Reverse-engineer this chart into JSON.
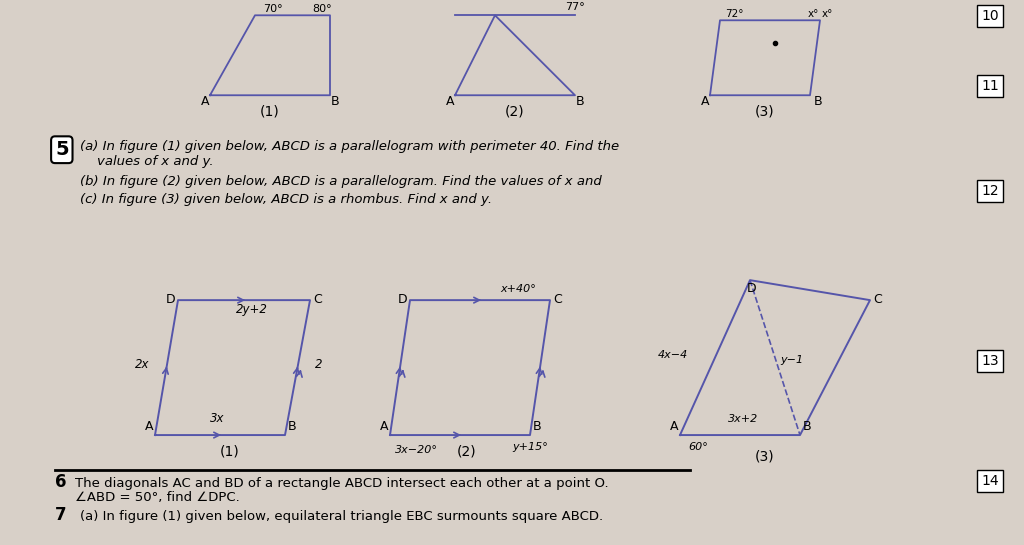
{
  "bg_color": "#d8d0c8",
  "page_bg": "#e8e0d8",
  "title_5": "5",
  "text_a": "(a) In figure (1) given below, ABCD is a parallelogram with perimeter 40. Find the\n      values of x and y.",
  "text_b": "(b) In figure (2) given below, ABCD is a parallelogram. Find the values of x and",
  "text_c": "(c) In figure (3) given below, ABCD is a rhombus. Find x and y.",
  "text_6": "6  The diagonals AC and BD of a rectangle ABCD intersect each other at a point O.\n   ∠ABD = 50°, find ∠DPC.",
  "text_7": "7    (a) In figure (1) given below, equilateral triangle EBC surmounts square ABCD.",
  "top_fig1_label": "(1)",
  "top_fig2_label": "(2)",
  "top_fig3_label": "(3)",
  "bot_fig1_label": "(1)",
  "bot_fig2_label": "(2)",
  "bot_fig3_label": "(3)",
  "right_labels": [
    "10",
    "11",
    "12",
    "13",
    "14"
  ]
}
